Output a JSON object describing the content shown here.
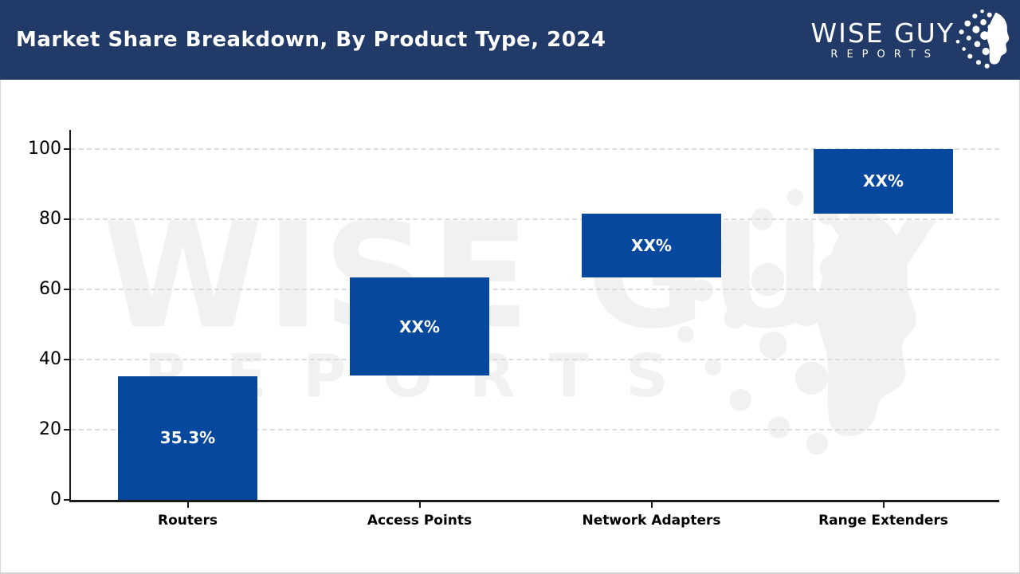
{
  "header": {
    "title": "Market Share Breakdown, By Product Type, 2024",
    "logo": {
      "line1": "WISE GUY",
      "line2": "REPORTS"
    }
  },
  "watermark": {
    "line1": "WISE GUY",
    "line2": "REPORTS"
  },
  "colors": {
    "header_bg": "#223a68",
    "bar": "#06489d",
    "grid": "#dcdcdc",
    "watermark": "#f1f1f1",
    "axis": "#1a1a1a",
    "bar_label_text": "#ffffff"
  },
  "chart_data": {
    "type": "bar",
    "subtype": "waterfall",
    "title": "Market Share Breakdown, By Product Type, 2024",
    "categories": [
      "Routers",
      "Access Points",
      "Network Adapters",
      "Range Extenders"
    ],
    "segments": [
      {
        "category": "Routers",
        "start": 0,
        "end": 35.3,
        "label": "35.3%"
      },
      {
        "category": "Access Points",
        "start": 35.3,
        "end": 63.4,
        "label": "XX%"
      },
      {
        "category": "Network Adapters",
        "start": 63.4,
        "end": 81.4,
        "label": "XX%"
      },
      {
        "category": "Range Extenders",
        "start": 81.4,
        "end": 100,
        "label": "XX%"
      }
    ],
    "yticks": [
      0,
      20,
      40,
      60,
      80,
      100
    ],
    "ylim": [
      0,
      105
    ],
    "xlabel": "",
    "ylabel": "",
    "grid": "horizontal-dashed",
    "legend": "none",
    "bar_color": "#06489d"
  }
}
